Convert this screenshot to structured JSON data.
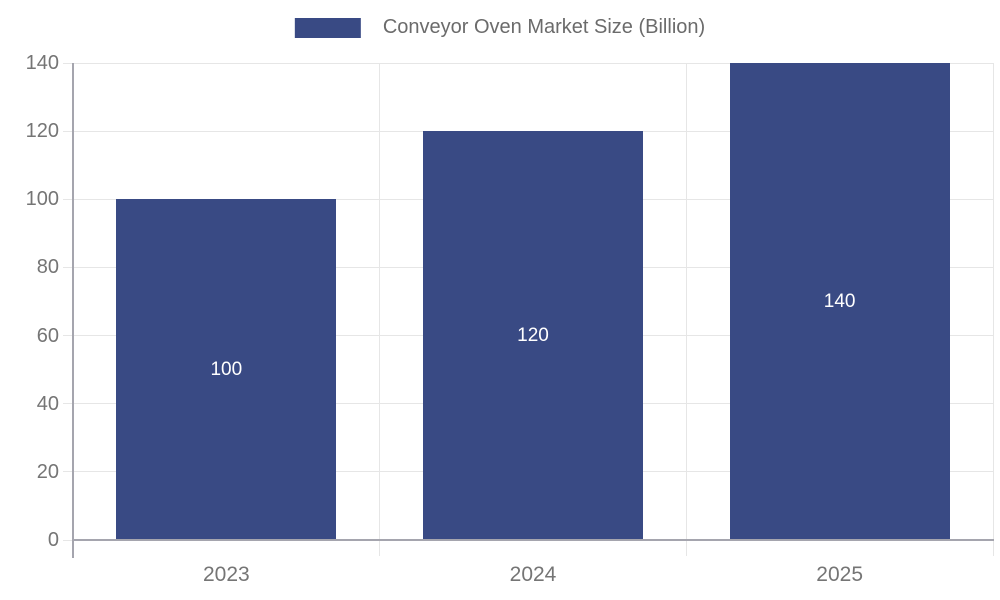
{
  "legend": {
    "items": [
      {
        "label": "Conveyor Oven Market Size (Billion)",
        "color": "#394a84"
      }
    ]
  },
  "chart_data": {
    "type": "bar",
    "title": "Conveyor Oven Market Size (Billion)",
    "series_name": "Conveyor Oven Market Size (Billion)",
    "categories": [
      "2023",
      "2024",
      "2025"
    ],
    "values": [
      100,
      120,
      140
    ],
    "bar_labels": [
      "100",
      "120",
      "140"
    ],
    "ylim": [
      0,
      140
    ],
    "yticks": [
      0,
      20,
      40,
      60,
      80,
      100,
      120,
      140
    ],
    "grid": true,
    "legend_position": "top-center",
    "colors": {
      "bar": "#394a84",
      "bar_label": "#ffffff",
      "grid_line": "#e6e6e6",
      "axis_line": "#a5a5ae",
      "tick_label": "#757575",
      "legend_text": "#6b6b6b"
    }
  }
}
